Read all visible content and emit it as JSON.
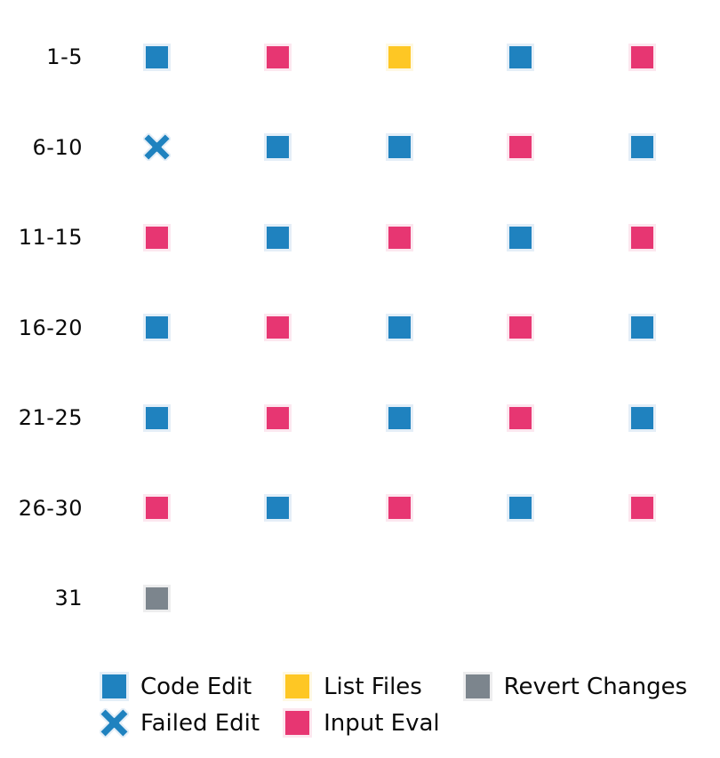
{
  "chart_data": {
    "type": "scatter",
    "description": "Grid timeline of agent actions per step group; rows are step ranges, each cell is one action marker",
    "title": "",
    "xlabel": "",
    "ylabel": "",
    "grid": false,
    "legend_position": "bottom",
    "row_labels": [
      "1-5",
      "6-10",
      "11-15",
      "16-20",
      "21-25",
      "26-30",
      "31"
    ],
    "rows": [
      {
        "label": "1-5",
        "actions": [
          "code_edit",
          "input_eval",
          "list_files",
          "code_edit",
          "input_eval"
        ]
      },
      {
        "label": "6-10",
        "actions": [
          "failed_edit",
          "code_edit",
          "code_edit",
          "input_eval",
          "code_edit"
        ]
      },
      {
        "label": "11-15",
        "actions": [
          "input_eval",
          "code_edit",
          "input_eval",
          "code_edit",
          "input_eval"
        ]
      },
      {
        "label": "16-20",
        "actions": [
          "code_edit",
          "input_eval",
          "code_edit",
          "input_eval",
          "code_edit"
        ]
      },
      {
        "label": "21-25",
        "actions": [
          "code_edit",
          "input_eval",
          "code_edit",
          "input_eval",
          "code_edit"
        ]
      },
      {
        "label": "26-30",
        "actions": [
          "input_eval",
          "code_edit",
          "input_eval",
          "code_edit",
          "input_eval"
        ]
      },
      {
        "label": "31",
        "actions": [
          "revert_changes"
        ]
      }
    ],
    "marker_styles": {
      "code_edit": {
        "shape": "square",
        "color": "#1f82bf",
        "edge": "#e4eef7",
        "label": "Code Edit"
      },
      "failed_edit": {
        "shape": "x",
        "color": "#1f82bf",
        "edge": "#e4eef7",
        "label": "Failed Edit"
      },
      "list_files": {
        "shape": "square",
        "color": "#fec724",
        "edge": "#fef8e3",
        "label": "List Files"
      },
      "input_eval": {
        "shape": "square",
        "color": "#e73672",
        "edge": "#fce7ef",
        "label": "Input Eval"
      },
      "revert_changes": {
        "shape": "square",
        "color": "#7c858d",
        "edge": "#ededee",
        "label": "Revert Changes"
      }
    },
    "legend_columns": [
      [
        "code_edit",
        "failed_edit"
      ],
      [
        "list_files",
        "input_eval"
      ],
      [
        "revert_changes"
      ]
    ]
  }
}
